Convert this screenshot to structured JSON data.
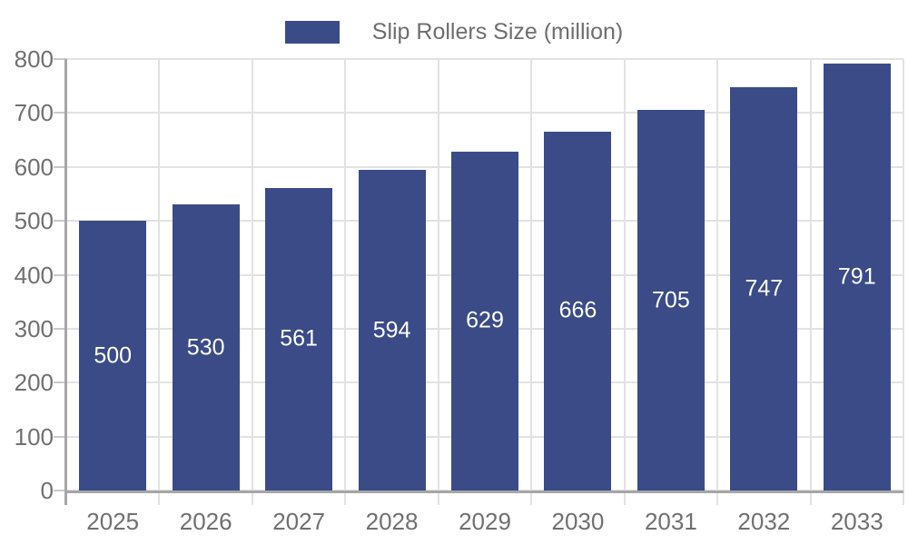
{
  "chart_data": {
    "type": "bar",
    "title": "",
    "legend_label": "Slip Rollers Size (million)",
    "legend_position": "top",
    "categories": [
      "2025",
      "2026",
      "2027",
      "2028",
      "2029",
      "2030",
      "2031",
      "2032",
      "2033"
    ],
    "values": [
      500,
      530,
      561,
      594,
      629,
      666,
      705,
      747,
      791
    ],
    "xlabel": "",
    "ylabel": "",
    "ylim": [
      0,
      800
    ],
    "yticks": [
      0,
      100,
      200,
      300,
      400,
      500,
      600,
      700,
      800
    ],
    "grid": true,
    "bar_value_label_position": "inside-center"
  },
  "colors": {
    "bar": "#3A4B87",
    "bar_label": "#FFFFFF",
    "grid": "#E2E2E2",
    "tick": "#C9C9C9",
    "axis": "#A6A6A6",
    "tick_label": "#707070",
    "legend_text": "#6E6E6E",
    "background": "#FFFFFF"
  }
}
